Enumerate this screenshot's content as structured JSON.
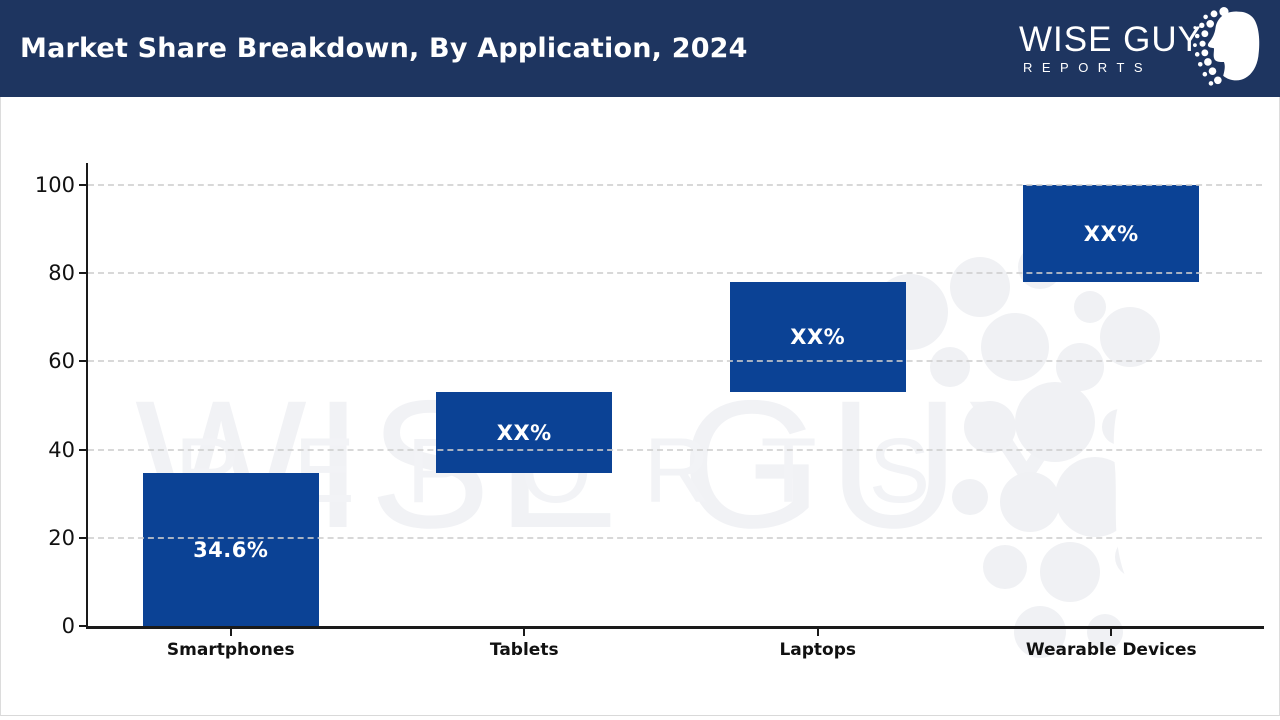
{
  "header": {
    "title": "Market Share Breakdown, By Application, 2024",
    "logo": {
      "line1": "WISE GUY",
      "line2": "REPORTS"
    }
  },
  "watermark": {
    "line1": "WISE GUY",
    "line2": "REPORTS"
  },
  "colors": {
    "header_bg": "#1e3560",
    "bar": "#0b4295",
    "grid": "#cecece",
    "axis": "#1a1a1a",
    "bar_label": "#ffffff",
    "watermark": "#f1f2f5"
  },
  "chart_data": {
    "type": "bar",
    "subtype": "waterfall",
    "title": "Market Share Breakdown, By Application, 2024",
    "categories": [
      "Smartphones",
      "Tablets",
      "Laptops",
      "Wearable Devices"
    ],
    "segments": [
      {
        "category": "Smartphones",
        "start": 0,
        "end": 34.6,
        "label": "34.6%"
      },
      {
        "category": "Tablets",
        "start": 34.6,
        "end": 53,
        "label": "XX%"
      },
      {
        "category": "Laptops",
        "start": 53,
        "end": 78,
        "label": "XX%"
      },
      {
        "category": "Wearable Devices",
        "start": 78,
        "end": 100,
        "label": "XX%"
      }
    ],
    "yticks": [
      0,
      20,
      40,
      60,
      80,
      100
    ],
    "ylim": [
      0,
      105
    ],
    "grid": "horizontal-dashed",
    "legend": "none",
    "xlabel": "",
    "ylabel": ""
  }
}
